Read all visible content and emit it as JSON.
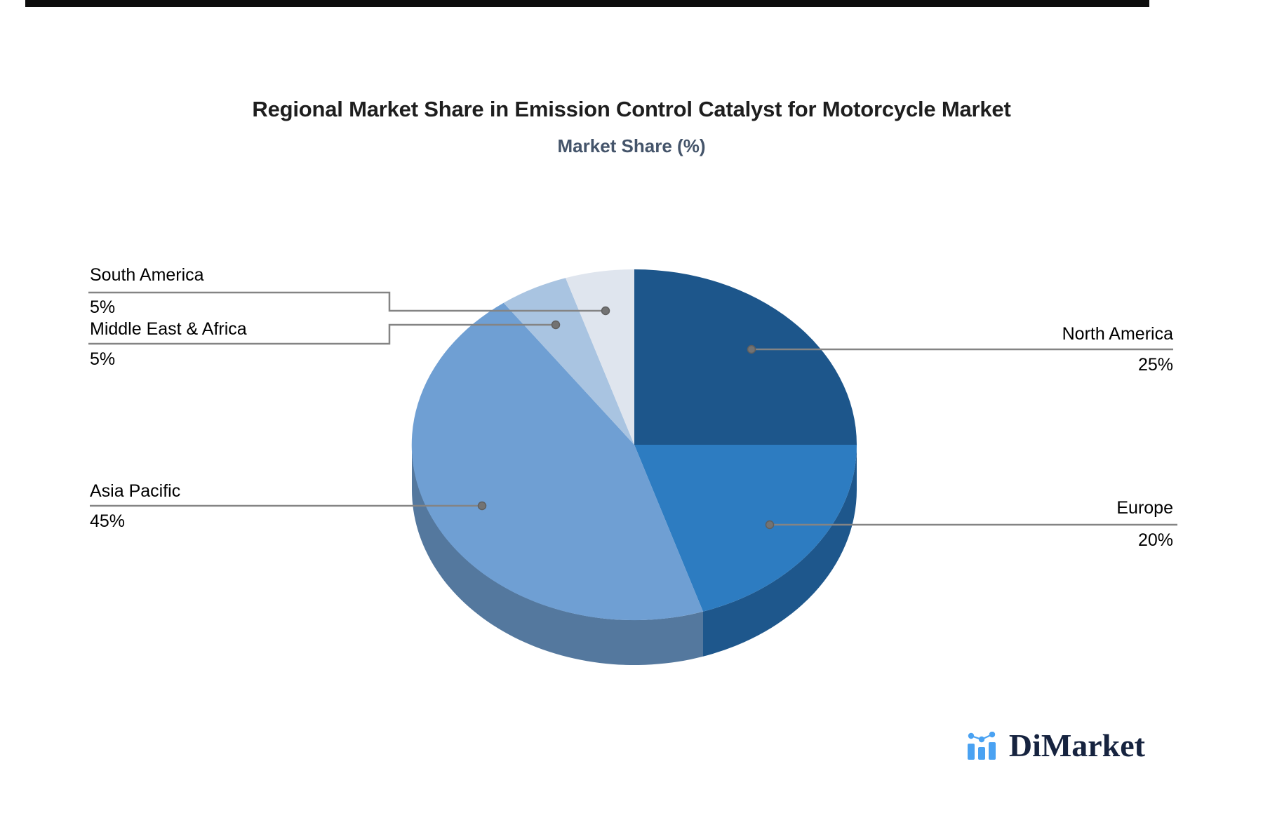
{
  "title": "Regional Market Share in Emission Control Catalyst for Motorcycle Market",
  "subtitle": "Market Share (%)",
  "logo": {
    "text": "DiMarket",
    "icon_color": "#4aa2f2",
    "text_color": "#16233f"
  },
  "chart_data": {
    "type": "pie",
    "title": "Regional Market Share in Emission Control Catalyst for Motorcycle Market",
    "subtitle": "Market Share (%)",
    "unit": "%",
    "start_angle_deg": 0,
    "clockwise": true,
    "style": "3d-pie",
    "legend_position": "callout-leader-lines",
    "categories": [
      "North America",
      "Europe",
      "Asia Pacific",
      "Middle East & Africa",
      "South America"
    ],
    "values": [
      25,
      20,
      45,
      5,
      5
    ],
    "slices": [
      {
        "label": "North America",
        "value": 25,
        "pct_label": "25%",
        "color": "#1d568b",
        "depth_color": "#16436c"
      },
      {
        "label": "Europe",
        "value": 20,
        "pct_label": "20%",
        "color": "#2d7cc1",
        "depth_color": "#1e578c"
      },
      {
        "label": "Asia Pacific",
        "value": 45,
        "pct_label": "45%",
        "color": "#6f9fd3",
        "depth_color": "#54789e"
      },
      {
        "label": "Middle East & Africa",
        "value": 5,
        "pct_label": "5%",
        "color": "#a9c4e1",
        "depth_color": "#7e9cbd"
      },
      {
        "label": "South America",
        "value": 5,
        "pct_label": "5%",
        "color": "#dfe5ee",
        "depth_color": "#aab5c6"
      }
    ]
  }
}
